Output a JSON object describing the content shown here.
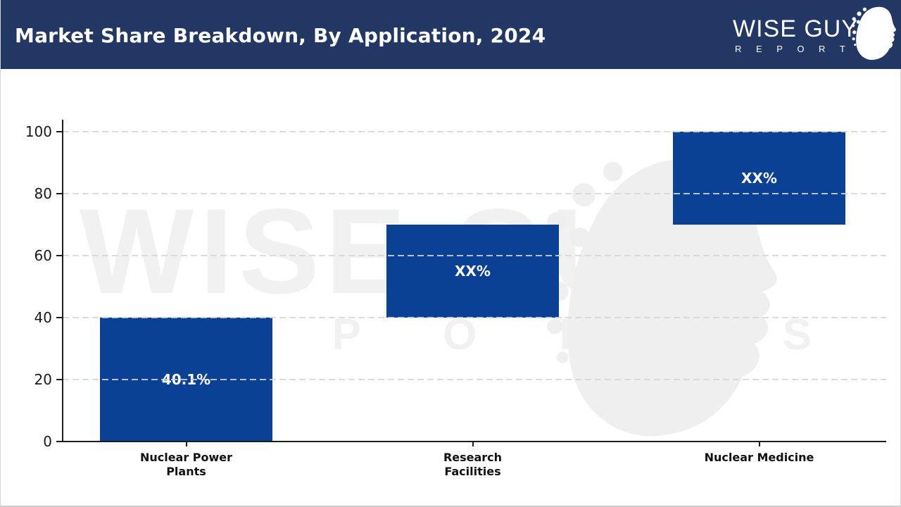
{
  "page": {
    "background": "#ffffff",
    "frame_border_color": "#d6d6d6"
  },
  "header": {
    "background_color": "#223764",
    "title": "Market Share Breakdown, By Application, 2024",
    "title_color": "#ffffff",
    "logo": {
      "word": "WISE GUY",
      "sub": "R E P O R T S"
    }
  },
  "watermark": {
    "word": "WISE GUY",
    "sub": "R E P O R T S",
    "color": "#f1f1f1"
  },
  "chart_data": {
    "type": "bar",
    "subtype": "floating-segments (waterfall-style market share)",
    "title": "Market Share Breakdown, By Application, 2024",
    "xlabel": "",
    "ylabel": "",
    "categories_lines": [
      [
        "Nuclear Power",
        "Plants"
      ],
      [
        "Research",
        "Facilities"
      ],
      [
        "Nuclear Medicine"
      ]
    ],
    "bars": [
      {
        "category": "Nuclear Power Plants",
        "from": 0,
        "to": 40.1,
        "label": "40.1%"
      },
      {
        "category": "Research Facilities",
        "from": 40.1,
        "to": 70,
        "label": "XX%"
      },
      {
        "category": "Nuclear Medicine",
        "from": 70,
        "to": 100,
        "label": "XX%"
      }
    ],
    "y_ticks": [
      0,
      20,
      40,
      60,
      80,
      100
    ],
    "ylim": [
      0,
      104
    ],
    "grid": "dashed horizontal, drawn over bars",
    "legend": "none",
    "bar_color": "#0a4194",
    "bar_label_color": "#ffffff",
    "gridline_color": "rgba(214,214,214,0.85)",
    "axis_color": "#1c1c1c",
    "tick_label_color": "#1a1a1a"
  }
}
